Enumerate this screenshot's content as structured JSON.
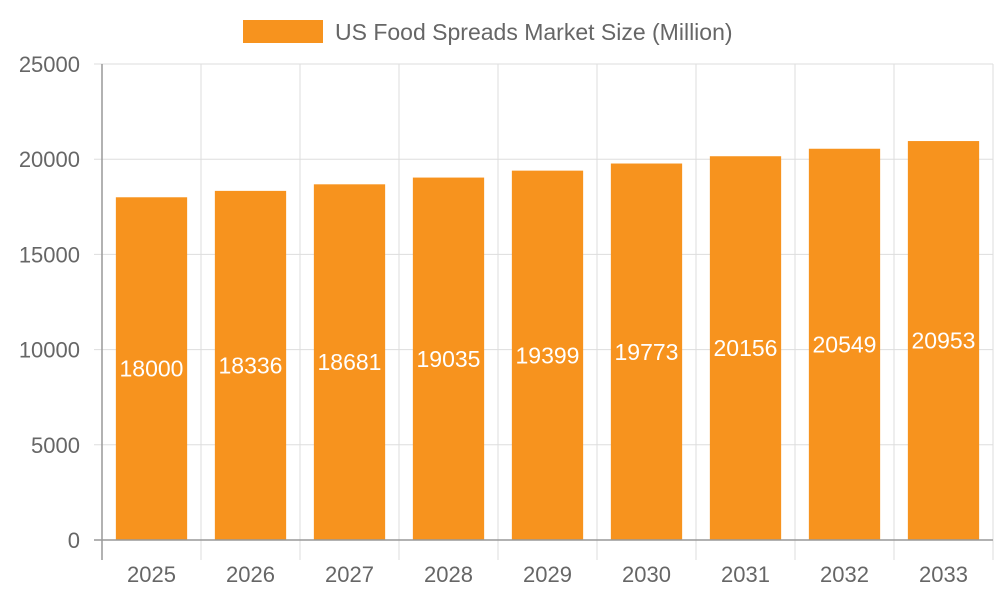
{
  "chart_data": {
    "type": "bar",
    "title": "",
    "xlabel": "",
    "ylabel": "",
    "categories": [
      "2025",
      "2026",
      "2027",
      "2028",
      "2029",
      "2030",
      "2031",
      "2032",
      "2033"
    ],
    "series": [
      {
        "name": "US Food Spreads Market Size (Million)",
        "values": [
          18000,
          18336,
          18681,
          19035,
          19399,
          19773,
          20156,
          20549,
          20953
        ],
        "color": "#f7931e"
      }
    ],
    "ylim": [
      0,
      25000
    ],
    "yticks": [
      0,
      5000,
      10000,
      15000,
      20000,
      25000
    ],
    "grid": true,
    "legend_position": "top",
    "data_labels": true,
    "data_label_color": "#ffffff"
  }
}
